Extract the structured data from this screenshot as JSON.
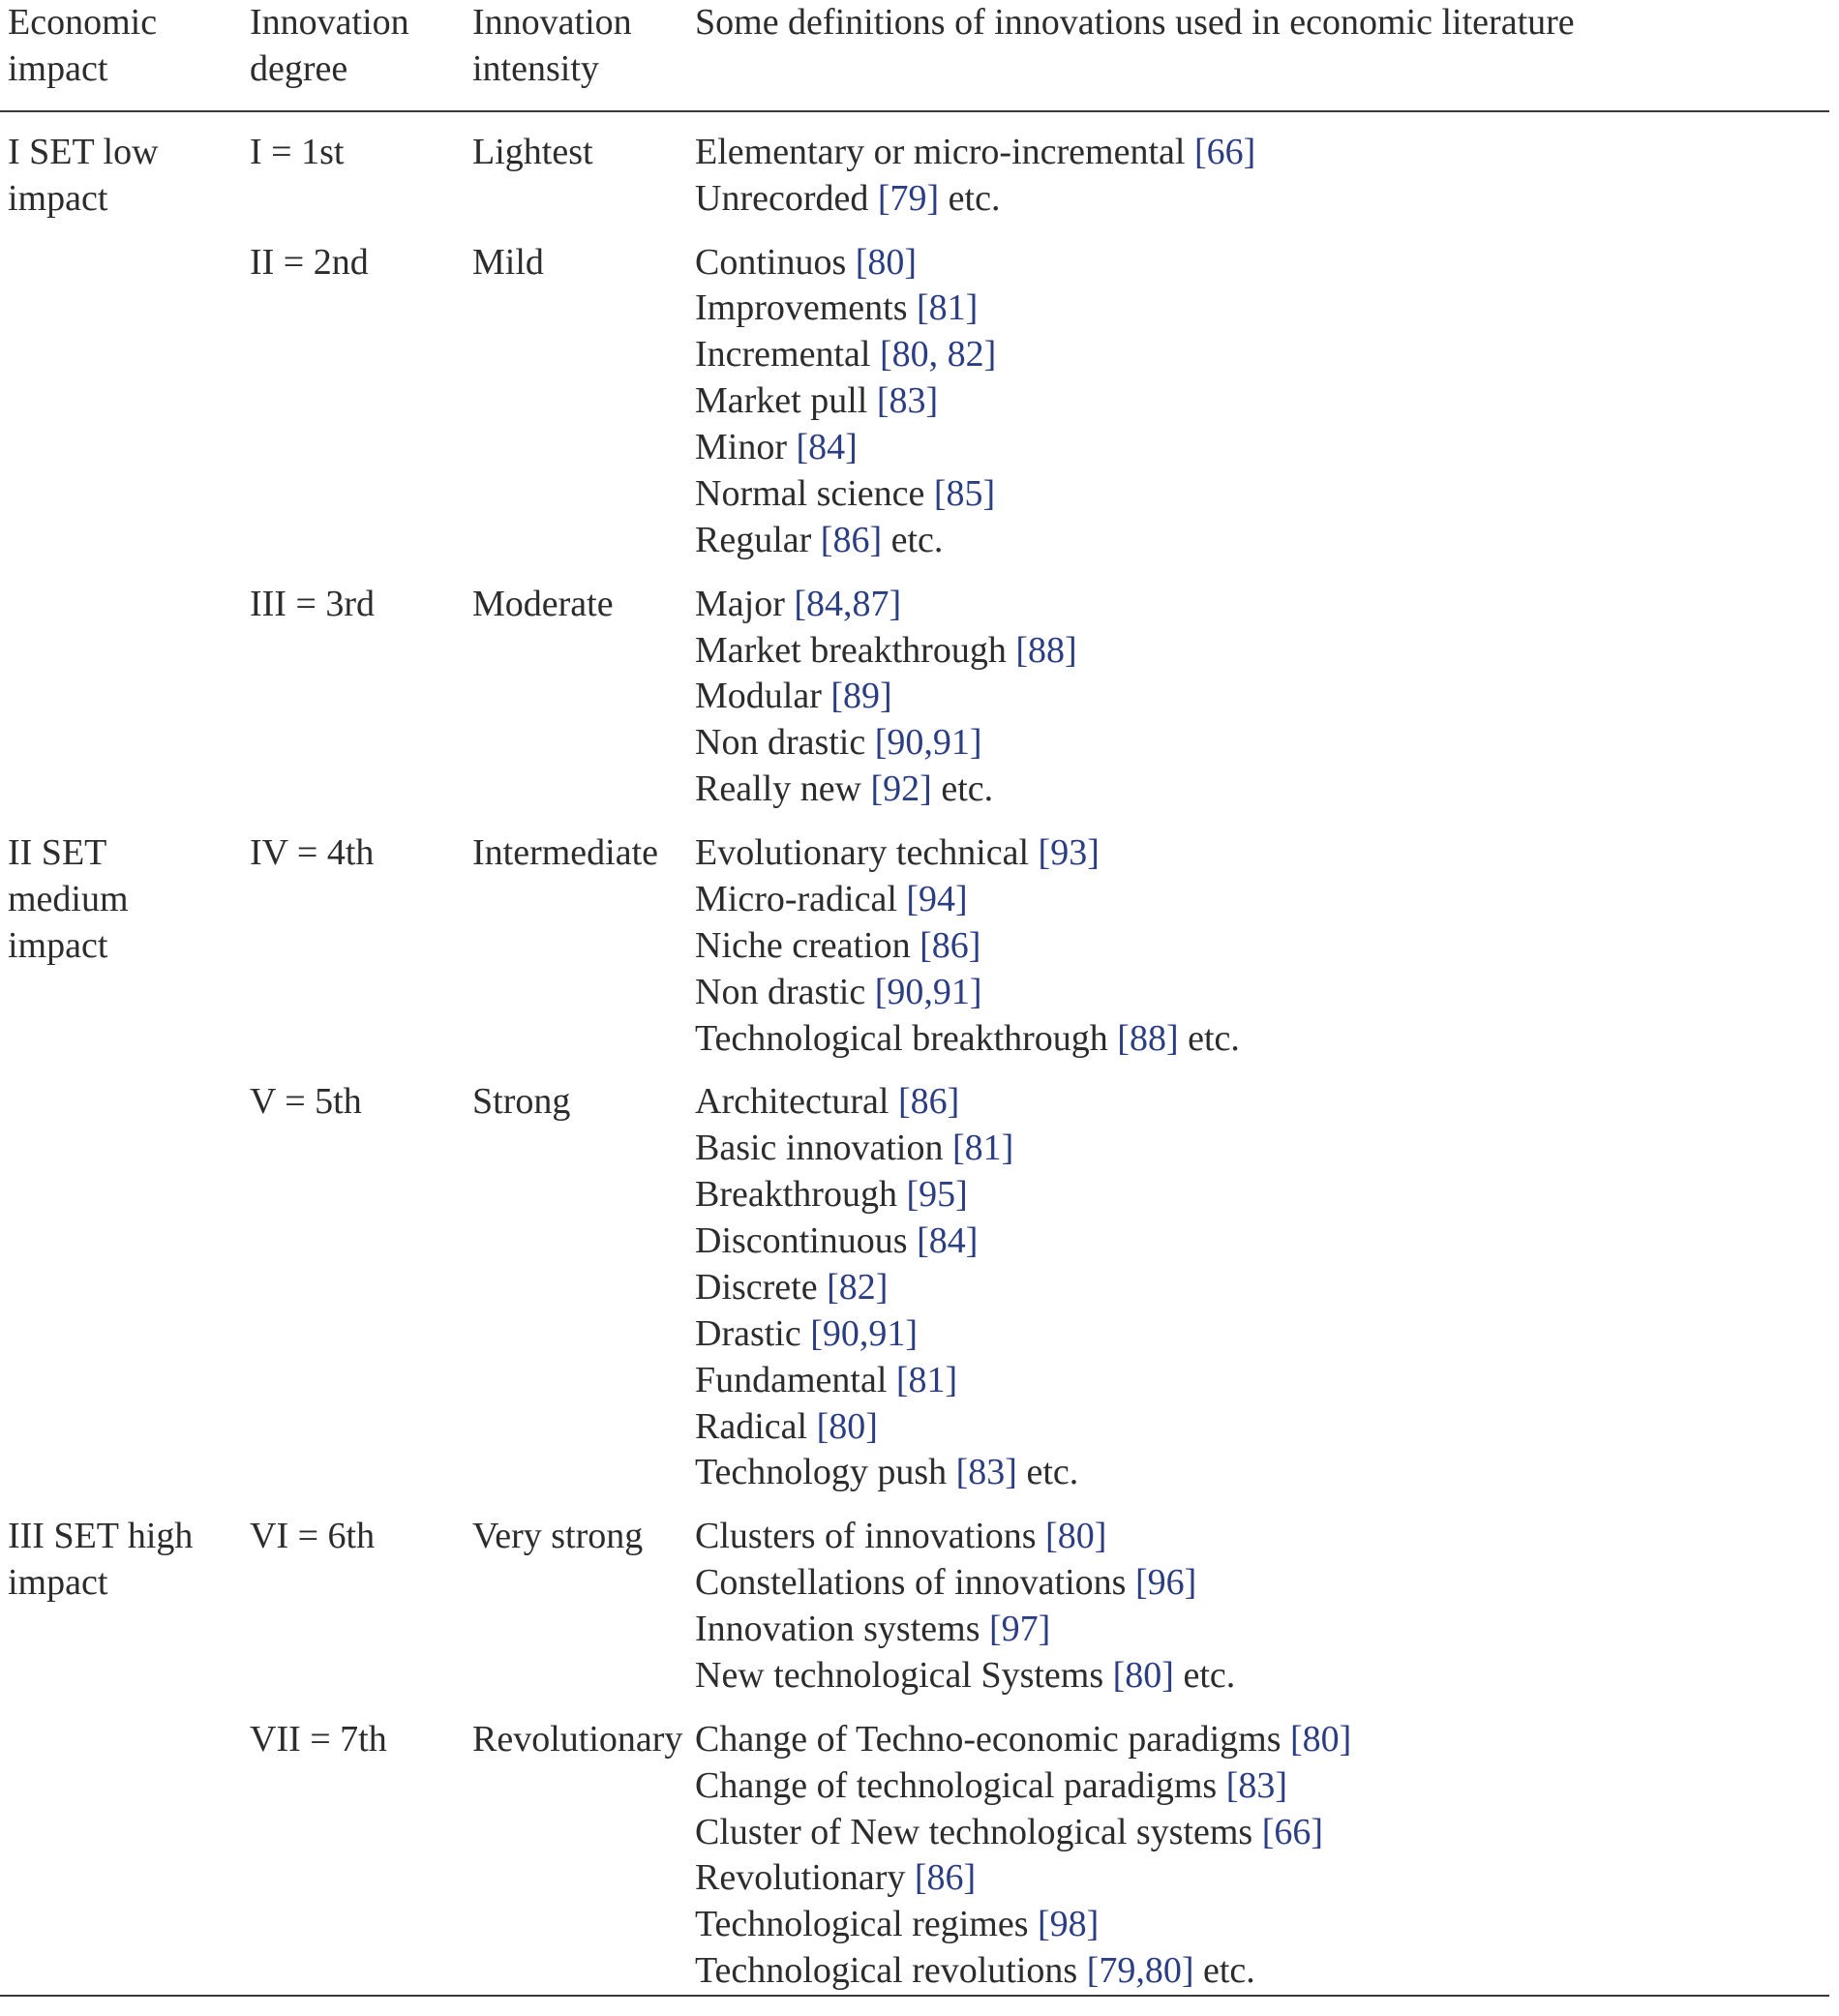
{
  "colors": {
    "text": "#2c2c2c",
    "reference": "#2b3e84",
    "rule": "#3a3a3a",
    "background": "#ffffff"
  },
  "typography": {
    "font_family": "Times New Roman",
    "font_size_pt": 28,
    "line_height": 1.26
  },
  "columns": {
    "economic_impact": "Economic impact",
    "innovation_degree": "Innovation degree",
    "innovation_intensity": "Innovation intensity",
    "definitions": "Some definitions of innovations used in economic literature"
  },
  "rows": [
    {
      "impact": "I SET low impact",
      "degree": "I = 1st",
      "intensity": "Lightest",
      "defs": [
        {
          "text": "Elementary or micro-incremental ",
          "ref": "[66]",
          "tail": ""
        },
        {
          "text": "Unrecorded ",
          "ref": "[79]",
          "tail": " etc."
        }
      ]
    },
    {
      "impact": "",
      "degree": "II = 2nd",
      "intensity": "Mild",
      "defs": [
        {
          "text": "Continuos ",
          "ref": "[80]",
          "tail": ""
        },
        {
          "text": "Improvements ",
          "ref": "[81]",
          "tail": ""
        },
        {
          "text": "Incremental ",
          "ref": "[80, 82]",
          "tail": ""
        },
        {
          "text": "Market pull ",
          "ref": "[83]",
          "tail": ""
        },
        {
          "text": "Minor ",
          "ref": "[84]",
          "tail": ""
        },
        {
          "text": "Normal science ",
          "ref": "[85]",
          "tail": ""
        },
        {
          "text": "Regular ",
          "ref": "[86]",
          "tail": " etc."
        }
      ]
    },
    {
      "impact": "",
      "degree": "III = 3rd",
      "intensity": "Moderate",
      "defs": [
        {
          "text": "Major ",
          "ref": "[84,87]",
          "tail": ""
        },
        {
          "text": "Market breakthrough ",
          "ref": "[88]",
          "tail": ""
        },
        {
          "text": "Modular ",
          "ref": "[89]",
          "tail": ""
        },
        {
          "text": "Non drastic ",
          "ref": "[90,91]",
          "tail": ""
        },
        {
          "text": "Really new ",
          "ref": "[92]",
          "tail": " etc."
        }
      ]
    },
    {
      "impact": "II SET medium impact",
      "degree": "IV = 4th",
      "intensity": "Intermediate",
      "defs": [
        {
          "text": "Evolutionary technical ",
          "ref": "[93]",
          "tail": ""
        },
        {
          "text": "Micro-radical ",
          "ref": "[94]",
          "tail": ""
        },
        {
          "text": "Niche creation ",
          "ref": "[86]",
          "tail": ""
        },
        {
          "text": "Non drastic ",
          "ref": "[90,91]",
          "tail": ""
        },
        {
          "text": "Technological breakthrough ",
          "ref": "[88]",
          "tail": " etc."
        }
      ]
    },
    {
      "impact": "",
      "degree": "V = 5th",
      "intensity": "Strong",
      "defs": [
        {
          "text": "Architectural ",
          "ref": "[86]",
          "tail": ""
        },
        {
          "text": "Basic innovation ",
          "ref": "[81]",
          "tail": ""
        },
        {
          "text": "Breakthrough ",
          "ref": "[95]",
          "tail": ""
        },
        {
          "text": "Discontinuous ",
          "ref": "[84]",
          "tail": ""
        },
        {
          "text": "Discrete ",
          "ref": "[82]",
          "tail": ""
        },
        {
          "text": "Drastic ",
          "ref": "[90,91]",
          "tail": ""
        },
        {
          "text": "Fundamental ",
          "ref": "[81]",
          "tail": ""
        },
        {
          "text": "Radical ",
          "ref": "[80]",
          "tail": ""
        },
        {
          "text": "Technology push ",
          "ref": "[83]",
          "tail": " etc."
        }
      ]
    },
    {
      "impact": "III SET high impact",
      "degree": "VI = 6th",
      "intensity": "Very strong",
      "defs": [
        {
          "text": "Clusters of innovations ",
          "ref": "[80]",
          "tail": ""
        },
        {
          "text": "Constellations of innovations ",
          "ref": "[96]",
          "tail": ""
        },
        {
          "text": "Innovation systems ",
          "ref": "[97]",
          "tail": ""
        },
        {
          "text": "New technological Systems ",
          "ref": "[80]",
          "tail": " etc."
        }
      ]
    },
    {
      "impact": "",
      "degree": "VII = 7th",
      "intensity": "Revolutionary",
      "defs": [
        {
          "text": "Change of Techno-economic paradigms ",
          "ref": "[80]",
          "tail": ""
        },
        {
          "text": "Change of technological paradigms ",
          "ref": "[83]",
          "tail": ""
        },
        {
          "text": "Cluster of New technological systems ",
          "ref": "[66]",
          "tail": ""
        },
        {
          "text": "Revolutionary ",
          "ref": "[86]",
          "tail": ""
        },
        {
          "text": "Technological regimes ",
          "ref": "[98]",
          "tail": ""
        },
        {
          "text": "Technological revolutions ",
          "ref": "[79,80]",
          "tail": " etc."
        }
      ]
    }
  ]
}
